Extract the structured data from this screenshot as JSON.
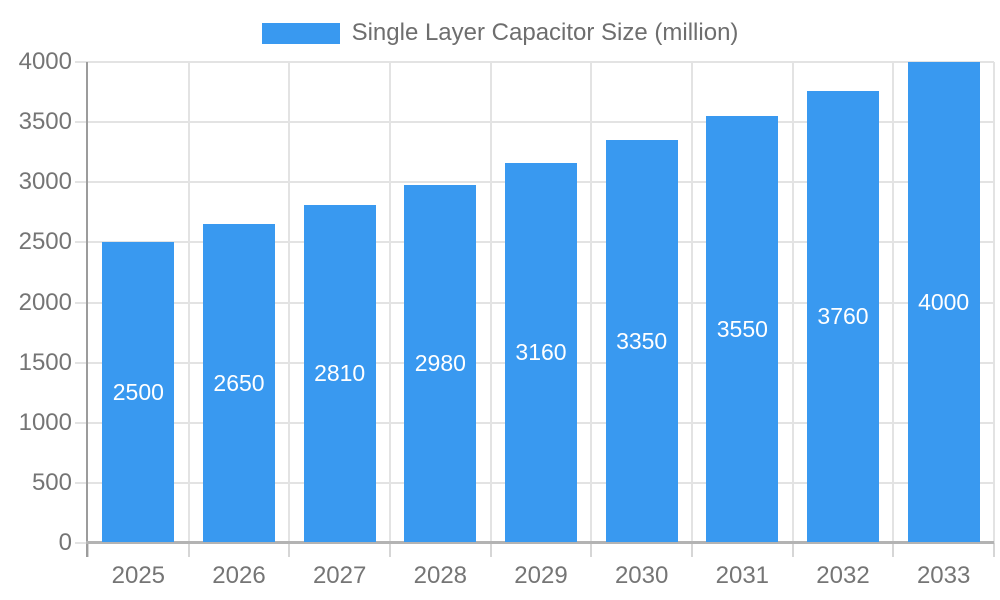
{
  "legend": {
    "label": "Single Layer Capacitor Size (million)"
  },
  "chart_data": {
    "type": "bar",
    "title": "",
    "xlabel": "",
    "ylabel": "",
    "categories": [
      "2025",
      "2026",
      "2027",
      "2028",
      "2029",
      "2030",
      "2031",
      "2032",
      "2033"
    ],
    "series": [
      {
        "name": "Single Layer Capacitor Size (million)",
        "values": [
          2500,
          2650,
          2810,
          2980,
          3160,
          3350,
          3550,
          3760,
          4000
        ]
      }
    ],
    "bar_labels_shown": true,
    "ylim": [
      0,
      4000
    ],
    "ytick_step": 500,
    "ytick_labels": [
      "0",
      "500",
      "1000",
      "1500",
      "2000",
      "2500",
      "3000",
      "3500",
      "4000"
    ],
    "grid": true,
    "legend_position": "top",
    "colors": {
      "bar_fill": "#3999f0",
      "bar_label_text": "#ffffff",
      "axis_text": "#757575",
      "legend_text": "#6e6e6e",
      "gridline": "#e3e3e3",
      "y_axis_line": "#9c9c9c",
      "x_axis_line": "#b3b3b3",
      "background": "#ffffff"
    }
  }
}
